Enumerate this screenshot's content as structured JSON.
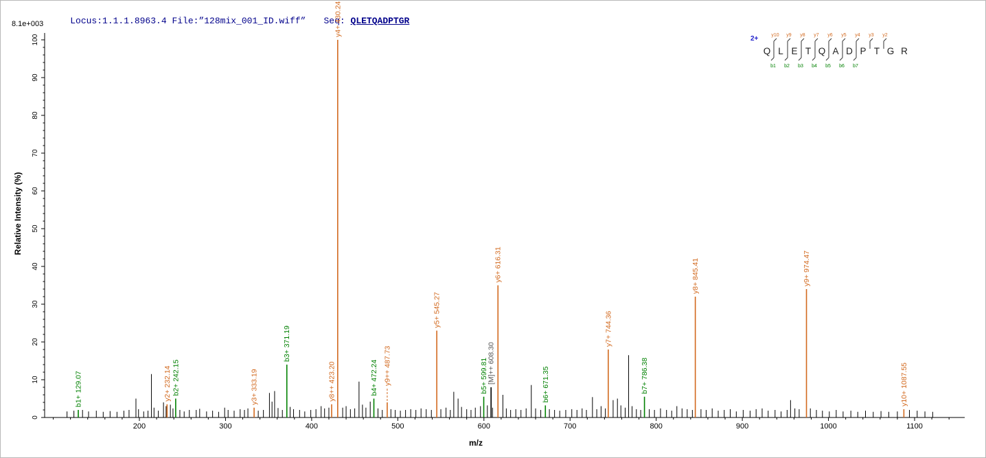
{
  "header": {
    "locus_file": "Locus:1.1.1.8963.4 File:”128mix_001_ID.wiff”",
    "seq_label": "Seq:",
    "sequence": "QLETQADPTGR"
  },
  "scale_label": "8.1e+003",
  "axes": {
    "xlabel": "m/z",
    "ylabel": "Relative  Intensity (%)"
  },
  "colors": {
    "y_ion": "#d2691e",
    "b_ion": "#008000",
    "precursor_label": "#555555",
    "peak_default": "#000000",
    "header_text": "#00008b",
    "charge_label": "#2222cc"
  },
  "sequence_diagram": {
    "charge_label": "2+",
    "residues": [
      "Q",
      "L",
      "E",
      "T",
      "Q",
      "A",
      "D",
      "P",
      "T",
      "G",
      "R"
    ],
    "y_ions": [
      "y10",
      "y9",
      "y8",
      "y7",
      "y6",
      "y5",
      "y4",
      "y3",
      "y2"
    ],
    "b_ions": [
      "b1",
      "b2",
      "b3",
      "b4",
      "b5",
      "b6",
      "b7"
    ]
  },
  "chart_data": {
    "type": "bar",
    "title": "Locus:1.1.1.8963.4 File:”128mix_001_ID.wiff” Seq: QLETQADPTGR",
    "xlabel": "m/z",
    "ylabel": "Relative  Intensity (%)",
    "xlim": [
      90,
      1155
    ],
    "ylim": [
      0,
      100
    ],
    "x_major_ticks": [
      200,
      300,
      400,
      500,
      600,
      700,
      800,
      900,
      1000,
      1100
    ],
    "x_minor_step": 20,
    "y_major_step": 10,
    "y_minor_step": 2,
    "grid": false,
    "intensity_scale_label": "8.1e+003",
    "labeled_peaks": [
      {
        "label": "b1+ 129.07",
        "mz": 129.07,
        "intensity": 2.0,
        "ion": "b"
      },
      {
        "label": "y2+ 232.14",
        "mz": 232.14,
        "intensity": 3.5,
        "ion": "y"
      },
      {
        "label": "b2+ 242.15",
        "mz": 242.15,
        "intensity": 5.0,
        "ion": "b"
      },
      {
        "label": "y3+ 333.19",
        "mz": 333.19,
        "intensity": 2.6,
        "ion": "y"
      },
      {
        "label": "b3+ 371.19",
        "mz": 371.19,
        "intensity": 14.0,
        "ion": "b"
      },
      {
        "label": "y8++ 423.20",
        "mz": 423.2,
        "intensity": 3.5,
        "ion": "y"
      },
      {
        "label": "y4+ 430.24",
        "mz": 430.24,
        "intensity": 100.0,
        "ion": "y"
      },
      {
        "label": "b4+ 472.24",
        "mz": 472.24,
        "intensity": 5.0,
        "ion": "b"
      },
      {
        "label": "y9++ 487.73",
        "mz": 487.73,
        "intensity": 4.0,
        "ion": "y",
        "dashed": true
      },
      {
        "label": "y5+ 545.27",
        "mz": 545.27,
        "intensity": 23.0,
        "ion": "y"
      },
      {
        "label": "b5+ 599.81",
        "mz": 599.81,
        "intensity": 5.5,
        "ion": "b"
      },
      {
        "label": "[M]++ 608.30",
        "mz": 608.3,
        "intensity": 8.0,
        "ion": "M"
      },
      {
        "label": "y6+ 616.31",
        "mz": 616.31,
        "intensity": 35.0,
        "ion": "y"
      },
      {
        "label": "b6+ 671.35",
        "mz": 671.35,
        "intensity": 3.2,
        "ion": "b"
      },
      {
        "label": "y7+ 744.36",
        "mz": 744.36,
        "intensity": 18.0,
        "ion": "y"
      },
      {
        "label": "b7+ 786.38",
        "mz": 786.38,
        "intensity": 5.5,
        "ion": "b"
      },
      {
        "label": "y8+ 845.41",
        "mz": 845.41,
        "intensity": 32.0,
        "ion": "y"
      },
      {
        "label": "y9+ 974.47",
        "mz": 974.47,
        "intensity": 34.0,
        "ion": "y"
      },
      {
        "label": "y10+ 1087.55",
        "mz": 1087.55,
        "intensity": 2.2,
        "ion": "y"
      }
    ],
    "unlabeled_peaks": [
      [
        116,
        1.6
      ],
      [
        124,
        1.8
      ],
      [
        134,
        2
      ],
      [
        141,
        1.6
      ],
      [
        150,
        1.8
      ],
      [
        158,
        1.5
      ],
      [
        166,
        1.7
      ],
      [
        174,
        1.5
      ],
      [
        182,
        1.8
      ],
      [
        188,
        2
      ],
      [
        196,
        5
      ],
      [
        199,
        2.2
      ],
      [
        205,
        1.6
      ],
      [
        210,
        1.8
      ],
      [
        214,
        11.5
      ],
      [
        217,
        2.6
      ],
      [
        222,
        1.8
      ],
      [
        228,
        4
      ],
      [
        231,
        3
      ],
      [
        236,
        3.4
      ],
      [
        239,
        2.4
      ],
      [
        247,
        2
      ],
      [
        252,
        1.6
      ],
      [
        258,
        2
      ],
      [
        266,
        2
      ],
      [
        270,
        2.3
      ],
      [
        278,
        1.6
      ],
      [
        285,
        1.8
      ],
      [
        292,
        1.5
      ],
      [
        299,
        2.6
      ],
      [
        303,
        2
      ],
      [
        310,
        1.8
      ],
      [
        317,
        2.2
      ],
      [
        322,
        2
      ],
      [
        326,
        2.4
      ],
      [
        338,
        1.8
      ],
      [
        344,
        2
      ],
      [
        351,
        6.5
      ],
      [
        354,
        4.2
      ],
      [
        357,
        7
      ],
      [
        361,
        2.5
      ],
      [
        366,
        2
      ],
      [
        375,
        2.8
      ],
      [
        379,
        2.2
      ],
      [
        386,
        2
      ],
      [
        392,
        1.6
      ],
      [
        399,
        2
      ],
      [
        405,
        2.2
      ],
      [
        411,
        3
      ],
      [
        415,
        2.4
      ],
      [
        420,
        2.6
      ],
      [
        436,
        2.6
      ],
      [
        440,
        3
      ],
      [
        445,
        2.2
      ],
      [
        450,
        2.4
      ],
      [
        455,
        9.5
      ],
      [
        459,
        3.4
      ],
      [
        463,
        2.6
      ],
      [
        468,
        4.2
      ],
      [
        477,
        2.4
      ],
      [
        482,
        2
      ],
      [
        492,
        2.2
      ],
      [
        497,
        2
      ],
      [
        503,
        1.8
      ],
      [
        509,
        2
      ],
      [
        515,
        2.2
      ],
      [
        521,
        2
      ],
      [
        527,
        2.4
      ],
      [
        533,
        2.2
      ],
      [
        539,
        2
      ],
      [
        550,
        2.2
      ],
      [
        556,
        2.6
      ],
      [
        561,
        2
      ],
      [
        565,
        6.8
      ],
      [
        570,
        5
      ],
      [
        574,
        2.8
      ],
      [
        580,
        2.2
      ],
      [
        585,
        2
      ],
      [
        590,
        2.6
      ],
      [
        596,
        3
      ],
      [
        604,
        3.2
      ],
      [
        610,
        2.6
      ],
      [
        622,
        6
      ],
      [
        626,
        2.4
      ],
      [
        631,
        2
      ],
      [
        637,
        2.2
      ],
      [
        643,
        2
      ],
      [
        649,
        2.4
      ],
      [
        655,
        8.6
      ],
      [
        660,
        2.4
      ],
      [
        666,
        2
      ],
      [
        676,
        2.2
      ],
      [
        682,
        2
      ],
      [
        688,
        1.8
      ],
      [
        695,
        2
      ],
      [
        702,
        2.2
      ],
      [
        708,
        2
      ],
      [
        714,
        2.4
      ],
      [
        719,
        2
      ],
      [
        726,
        5.4
      ],
      [
        731,
        2.2
      ],
      [
        736,
        3
      ],
      [
        741,
        2.4
      ],
      [
        750,
        4.6
      ],
      [
        755,
        5
      ],
      [
        759,
        3.2
      ],
      [
        764,
        2.6
      ],
      [
        768,
        16.5
      ],
      [
        772,
        3
      ],
      [
        777,
        2.2
      ],
      [
        782,
        2
      ],
      [
        792,
        2.2
      ],
      [
        798,
        2
      ],
      [
        805,
        2.4
      ],
      [
        812,
        2
      ],
      [
        818,
        1.8
      ],
      [
        824,
        3
      ],
      [
        830,
        2.4
      ],
      [
        836,
        2.2
      ],
      [
        842,
        2
      ],
      [
        852,
        2.2
      ],
      [
        858,
        2
      ],
      [
        865,
        2.4
      ],
      [
        872,
        1.8
      ],
      [
        879,
        2
      ],
      [
        886,
        2.2
      ],
      [
        893,
        1.6
      ],
      [
        901,
        2
      ],
      [
        909,
        1.8
      ],
      [
        916,
        2.2
      ],
      [
        923,
        2.4
      ],
      [
        930,
        1.8
      ],
      [
        938,
        2
      ],
      [
        945,
        1.6
      ],
      [
        952,
        2
      ],
      [
        956,
        4.6
      ],
      [
        961,
        2.4
      ],
      [
        966,
        2.2
      ],
      [
        979,
        2.4
      ],
      [
        986,
        2
      ],
      [
        993,
        1.8
      ],
      [
        1001,
        1.6
      ],
      [
        1009,
        2
      ],
      [
        1017,
        1.6
      ],
      [
        1026,
        1.8
      ],
      [
        1034,
        1.5
      ],
      [
        1043,
        1.8
      ],
      [
        1052,
        1.5
      ],
      [
        1061,
        1.7
      ],
      [
        1070,
        1.5
      ],
      [
        1080,
        1.6
      ],
      [
        1094,
        2
      ],
      [
        1103,
        1.8
      ],
      [
        1112,
        1.6
      ],
      [
        1121,
        1.5
      ]
    ]
  }
}
